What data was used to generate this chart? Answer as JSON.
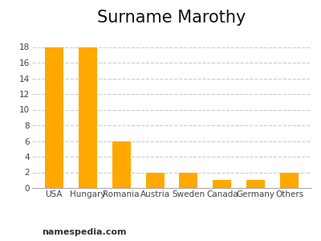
{
  "title": "Surname Marothy",
  "categories": [
    "USA",
    "Hungary",
    "Romania",
    "Austria",
    "Sweden",
    "Canada",
    "Germany",
    "Others"
  ],
  "values": [
    18,
    18,
    6,
    2,
    2,
    1,
    1,
    2
  ],
  "bar_color": "#FFA800",
  "background_color": "#ffffff",
  "ylim": [
    0,
    20
  ],
  "yticks": [
    0,
    2,
    4,
    6,
    8,
    10,
    12,
    14,
    16,
    18
  ],
  "grid_color": "#cccccc",
  "title_fontsize": 15,
  "tick_fontsize": 7.5,
  "footnote": "namespedia.com",
  "footnote_fontsize": 8,
  "bar_width": 0.55
}
